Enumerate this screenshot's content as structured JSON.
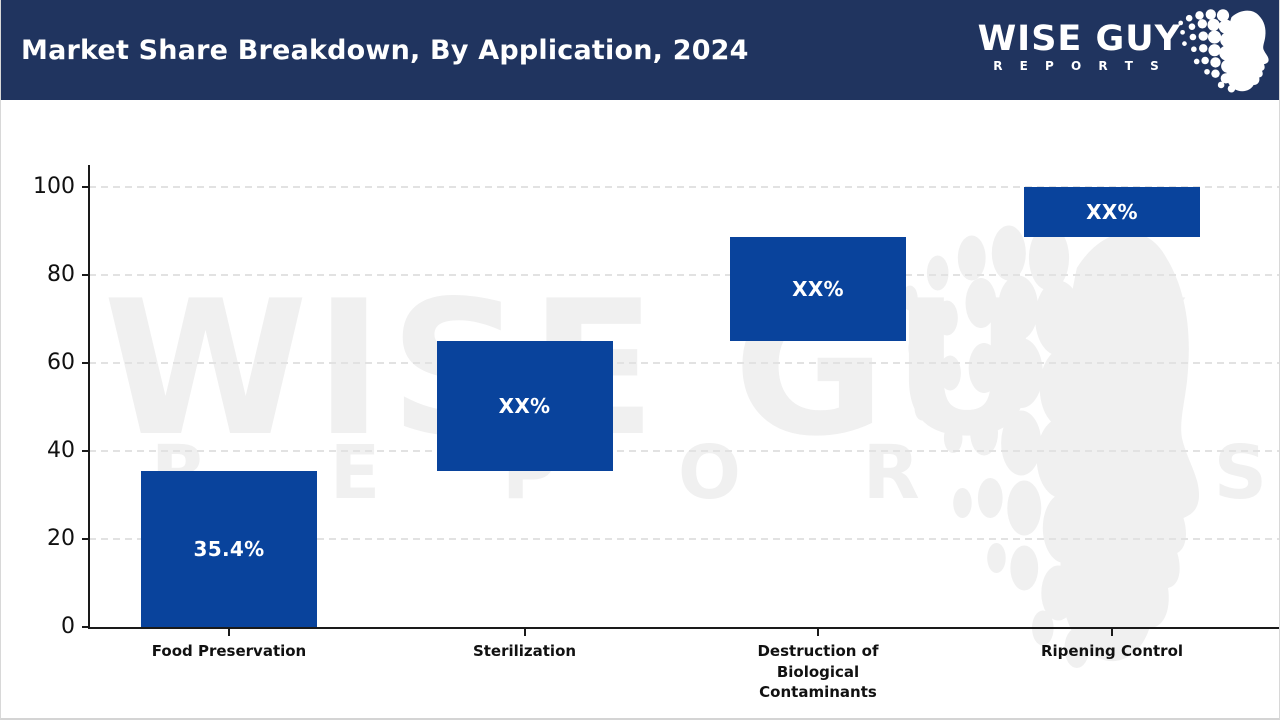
{
  "header": {
    "title": "Market Share Breakdown, By Application, 2024",
    "logo": {
      "line1": "WISE GUY",
      "line2": "R E P O R T S"
    }
  },
  "watermark": {
    "line1": "WISE GUY",
    "line2": "R E P O R T S"
  },
  "chart_data": {
    "type": "bar",
    "subtype": "floating-waterfall",
    "title": "Market Share Breakdown, By Application, 2024",
    "categories": [
      "Food Preservation",
      "Sterilization",
      "Destruction of Biological Contaminants",
      "Ripening Control"
    ],
    "bars": [
      {
        "category": "Food Preservation",
        "label": "35.4%",
        "start": 0,
        "end": 35.4
      },
      {
        "category": "Sterilization",
        "label": "XX%",
        "start": 35.4,
        "end": 65.0
      },
      {
        "category": "Destruction of Biological Contaminants",
        "label": "XX%",
        "start": 65.0,
        "end": 88.6
      },
      {
        "category": "Ripening Control",
        "label": "XX%",
        "start": 88.6,
        "end": 100.0
      }
    ],
    "y_ticks": [
      0,
      20,
      40,
      60,
      80,
      100
    ],
    "ylim": [
      0,
      105
    ],
    "xlabel": "",
    "ylabel": "",
    "grid": "horizontal-dashed",
    "legend": "none"
  },
  "colors": {
    "header_bg": "#20345f",
    "bar_fill": "#09439c",
    "bar_label": "#ffffff",
    "axis": "#1a1a1a",
    "gridline": "#e2e2e2",
    "watermark": "#f0f0f0",
    "title_text": "#ffffff"
  }
}
